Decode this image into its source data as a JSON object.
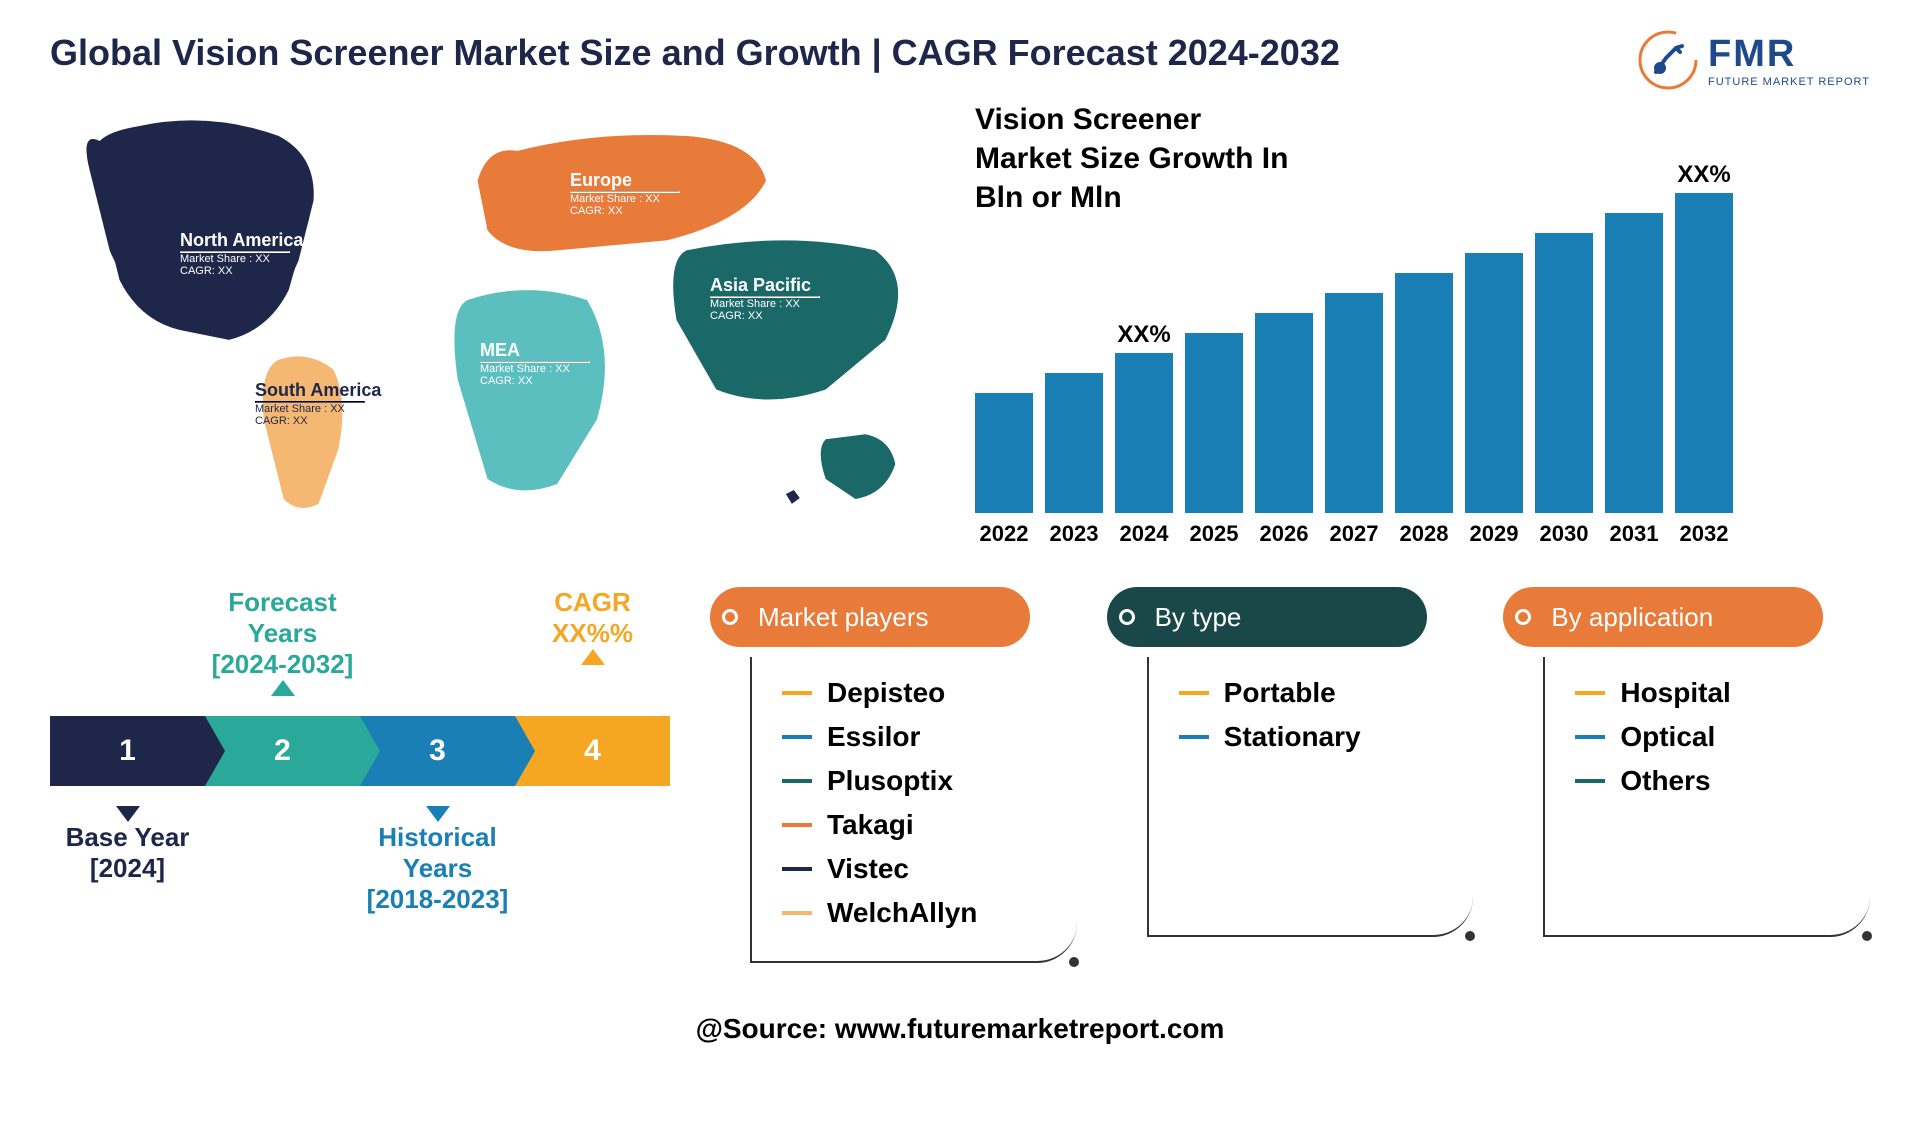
{
  "title": "Global Vision Screener Market Size and Growth | CAGR Forecast 2024-2032",
  "logo": {
    "brand": "FMR",
    "tagline": "FUTURE MARKET REPORT"
  },
  "chart": {
    "title": "Vision Screener\nMarket Size Growth In\nBln or Mln",
    "type": "bar",
    "years": [
      "2022",
      "2023",
      "2024",
      "2025",
      "2026",
      "2027",
      "2028",
      "2029",
      "2030",
      "2031",
      "2032"
    ],
    "values": [
      120,
      140,
      160,
      180,
      200,
      220,
      240,
      260,
      280,
      300,
      320
    ],
    "bar_color": "#1a7fb5",
    "label_2024": "XX%",
    "label_2032": "XX%",
    "label_fontsize": 24
  },
  "map": {
    "regions": [
      {
        "name": "North America",
        "color": "#1e2749",
        "share": "Market Share : XX",
        "cagr": "CAGR: XX"
      },
      {
        "name": "South America",
        "color": "#f5b872",
        "share": "Market Share : XX",
        "cagr": "CAGR: XX",
        "dark": true
      },
      {
        "name": "Europe",
        "color": "#e87a3a",
        "share": "Market Share : XX",
        "cagr": "CAGR: XX"
      },
      {
        "name": "MEA",
        "color": "#5bbfbf",
        "share": "Market Share : XX",
        "cagr": "CAGR: XX"
      },
      {
        "name": "Asia Pacific",
        "color": "#1a6868",
        "share": "Market Share : XX",
        "cagr": "CAGR: XX"
      }
    ]
  },
  "timeline": {
    "segments": [
      {
        "num": "1",
        "color": "#1e2749",
        "label": "Base Year\n[2024]",
        "pos": "bottom",
        "label_color": "#1e2749"
      },
      {
        "num": "2",
        "color": "#2aa89a",
        "label": "Forecast Years\n[2024-2032]",
        "pos": "top",
        "label_color": "#2aa89a"
      },
      {
        "num": "3",
        "color": "#1a7fb5",
        "label": "Historical Years\n[2018-2023]",
        "pos": "bottom",
        "label_color": "#1a7fb5"
      },
      {
        "num": "4",
        "color": "#f5a623",
        "label": "CAGR\nXX%%",
        "pos": "top",
        "label_color": "#f5a623"
      }
    ]
  },
  "pills": [
    {
      "title": "Market players",
      "bg": "#e87a3a",
      "items": [
        {
          "text": "Depisteo",
          "color": "#f5a623"
        },
        {
          "text": "Essilor",
          "color": "#1a7fb5"
        },
        {
          "text": "Plusoptix",
          "color": "#1a6868"
        },
        {
          "text": "Takagi",
          "color": "#e87a3a"
        },
        {
          "text": "Vistec",
          "color": "#1e2749"
        },
        {
          "text": "WelchAllyn",
          "color": "#f5b872"
        }
      ]
    },
    {
      "title": "By type",
      "bg": "#1a4848",
      "items": [
        {
          "text": "Portable",
          "color": "#f5a623"
        },
        {
          "text": "Stationary",
          "color": "#1a7fb5"
        }
      ]
    },
    {
      "title": "By application",
      "bg": "#e87a3a",
      "items": [
        {
          "text": "Hospital",
          "color": "#f5a623"
        },
        {
          "text": "Optical",
          "color": "#1a7fb5"
        },
        {
          "text": "Others",
          "color": "#1a6868"
        }
      ]
    }
  ],
  "source": "@Source: www.futuremarketreport.com"
}
